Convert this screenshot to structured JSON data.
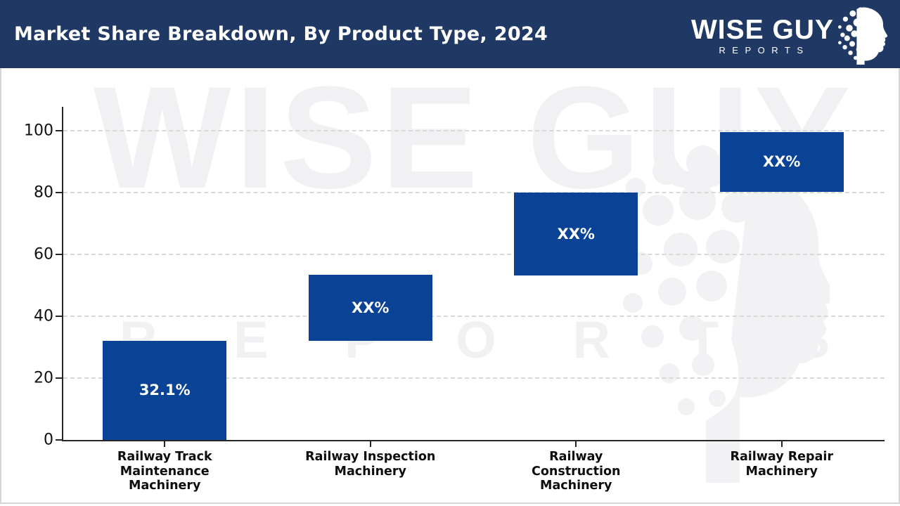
{
  "header": {
    "title": "Market Share Breakdown, By Product Type, 2024",
    "logo": {
      "name": "WISE GUY",
      "sub": "REPORTS"
    }
  },
  "watermark": {
    "name": "WISE GUY",
    "sub": "R E P O R T S"
  },
  "chart_data": {
    "type": "bar",
    "subtype": "waterfall",
    "title": "Market Share Breakdown, By Product Type, 2024",
    "categories": [
      "Railway Track\nMaintenance\nMachinery",
      "Railway Inspection\nMachinery",
      "Railway\nConstruction\nMachinery",
      "Railway Repair\nMachinery"
    ],
    "segments": [
      {
        "start": 0,
        "end": 32.1,
        "label": "32.1%"
      },
      {
        "start": 32.1,
        "end": 53.4,
        "label": "XX%"
      },
      {
        "start": 53.2,
        "end": 80.0,
        "label": "XX%"
      },
      {
        "start": 80.2,
        "end": 99.5,
        "label": "XX%"
      }
    ],
    "xlabel": "",
    "ylabel": "",
    "yticks": [
      0,
      20,
      40,
      60,
      80,
      100
    ],
    "ylim": [
      0,
      104
    ],
    "grid": "horizontal-dashed",
    "legend": "none",
    "bar_color": "#0a4296",
    "bar_label_color": "#ffffff",
    "colors": {
      "header_bg": "#1f3864",
      "grid": "#d9d9d9",
      "axis": "#262626",
      "watermark": "#f1f1f3",
      "frame": "#d6d6d6"
    }
  }
}
